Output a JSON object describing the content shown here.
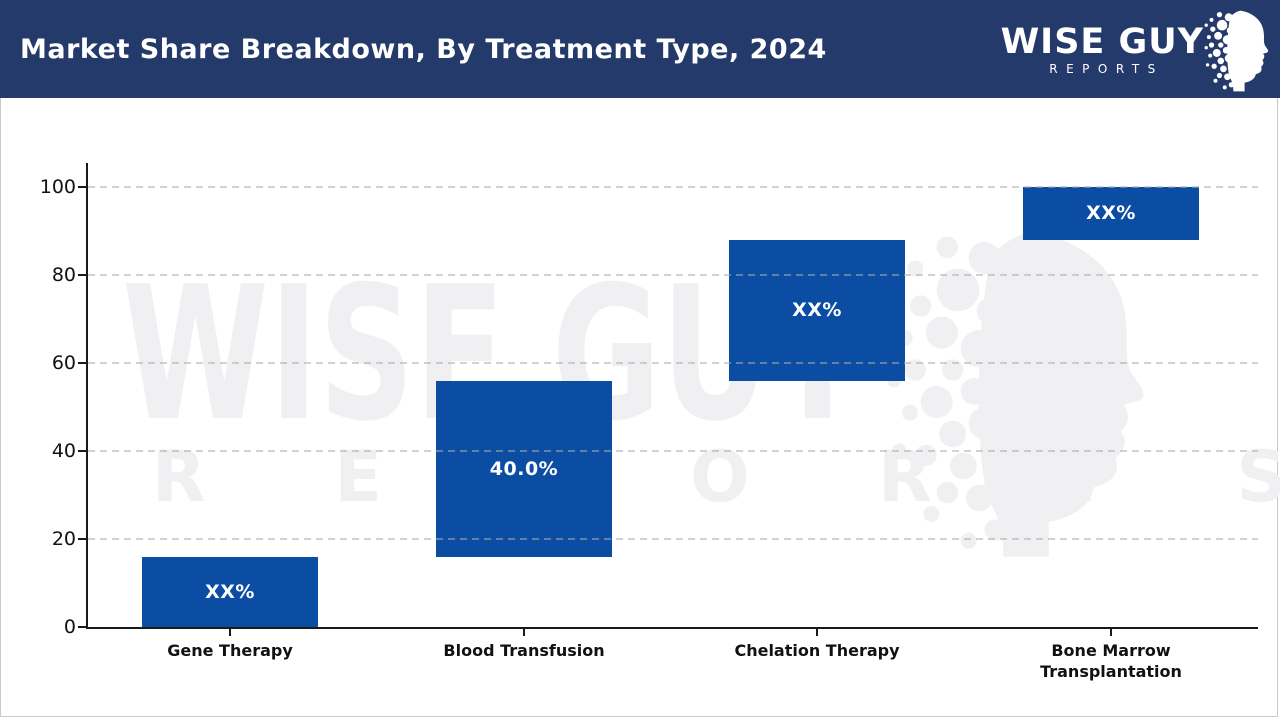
{
  "header": {
    "title": "Market Share Breakdown, By Treatment Type, 2024",
    "logo": {
      "line1": "WISE GUY",
      "line2": "REPORTS"
    }
  },
  "watermark": {
    "line1": "WISE GUY",
    "line2": "R E P O R T S"
  },
  "colors": {
    "header_bg": "#233a6b",
    "bar": "#0b4da2",
    "axis": "#1a1a1a",
    "watermark": "#f0f0f2",
    "title_text": "#ffffff",
    "bar_label": "#ffffff"
  },
  "chart_data": {
    "type": "bar",
    "subtype": "waterfall",
    "title": "Market Share Breakdown, By Treatment Type, 2024",
    "categories": [
      "Gene Therapy",
      "Blood Transfusion",
      "Chelation Therapy",
      "Bone Marrow Transplantation"
    ],
    "segments": [
      {
        "category": "Gene Therapy",
        "start": 0,
        "end": 16,
        "label": "XX%"
      },
      {
        "category": "Blood Transfusion",
        "start": 16,
        "end": 56,
        "label": "40.0%"
      },
      {
        "category": "Chelation Therapy",
        "start": 56,
        "end": 88,
        "label": "XX%"
      },
      {
        "category": "Bone Marrow Transplantation",
        "start": 88,
        "end": 100,
        "label": "XX%"
      }
    ],
    "yticks": [
      "0",
      "20",
      "40",
      "60",
      "80",
      "100"
    ],
    "ylim": [
      0,
      105.5
    ],
    "xlabel": "",
    "ylabel": "",
    "grid": "horizontal-dashed",
    "legend": "none"
  }
}
